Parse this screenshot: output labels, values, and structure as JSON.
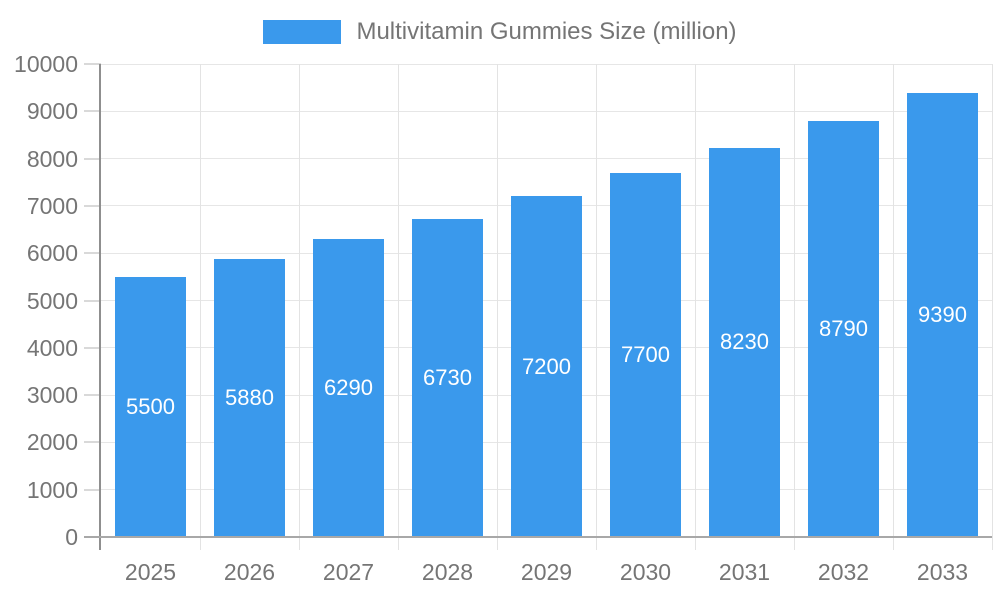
{
  "legend": {
    "label": "Multivitamin Gummies Size (million)"
  },
  "chart_data": {
    "type": "bar",
    "title": "Multivitamin Gummies Size (million)",
    "series_name": "Multivitamin Gummies Size (million)",
    "categories": [
      "2025",
      "2026",
      "2027",
      "2028",
      "2029",
      "2030",
      "2031",
      "2032",
      "2033"
    ],
    "values": [
      5500,
      5880,
      6290,
      6730,
      7200,
      7700,
      8230,
      8790,
      9390
    ],
    "xlabel": "",
    "ylabel": "",
    "ylim": [
      0,
      10000
    ],
    "ytick_step": 1000,
    "ytick_labels": [
      "0",
      "1000",
      "2000",
      "3000",
      "4000",
      "5000",
      "6000",
      "7000",
      "8000",
      "9000",
      "10000"
    ],
    "grid": true,
    "legend_position": "top",
    "bar_color": "#3a99ec",
    "bar_value_label_color": "#ffffff",
    "axis_text_color": "#757575",
    "gridline_color": "#e6e6e6"
  }
}
